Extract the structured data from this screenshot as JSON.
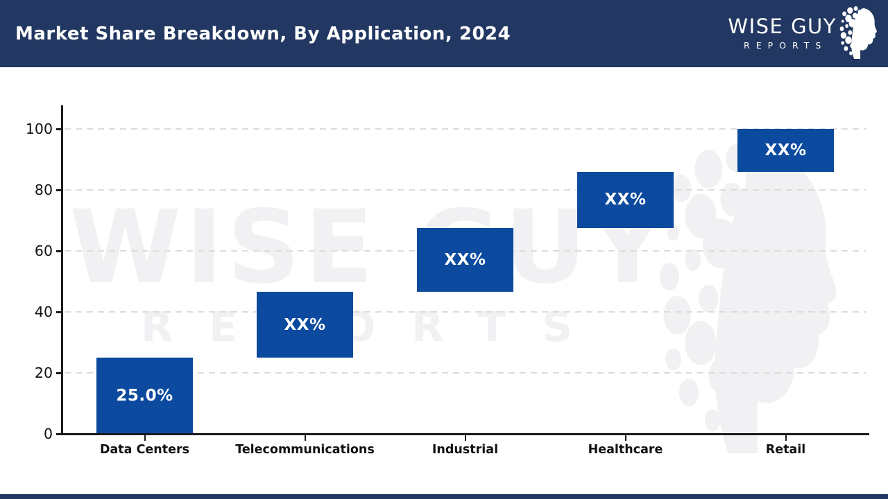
{
  "header": {
    "title": "Market Share Breakdown, By Application, 2024",
    "bg_color": "#223862",
    "logo": {
      "name": "WISE GUY",
      "subname": "REPORTS"
    }
  },
  "watermark": {
    "line1": "WISE GUY",
    "line2": "REPORTS"
  },
  "footer": {
    "bg_color": "#223862"
  },
  "chart_data": {
    "type": "bar",
    "subtype": "waterfall-style floating bars",
    "title": "Market Share Breakdown, By Application, 2024",
    "xlabel": "",
    "ylabel": "",
    "categories": [
      "Data Centers",
      "Telecommunications",
      "Industrial",
      "Healthcare",
      "Retail"
    ],
    "series": [
      {
        "name": "Market share (%)",
        "bar_labels": [
          "25.0%",
          "XX%",
          "XX%",
          "XX%",
          "XX%"
        ],
        "segment_start": [
          0,
          25,
          46.5,
          67.5,
          86
        ],
        "segment_end": [
          25,
          46.5,
          67.5,
          86,
          100
        ]
      }
    ],
    "ylim": [
      0,
      105
    ],
    "yticks": [
      0,
      20,
      40,
      60,
      80,
      100
    ],
    "grid": "horizontal dashed",
    "legend": "none",
    "bar_color": "#0b4a9e",
    "grid_color": "#dcdcdc",
    "axis_color": "#1a1a1a"
  }
}
